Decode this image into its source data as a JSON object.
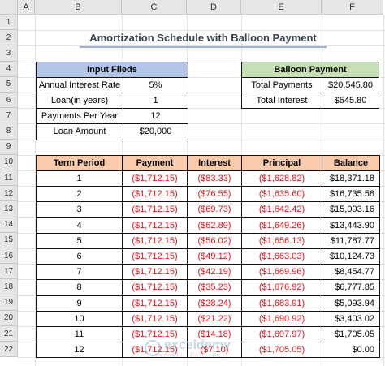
{
  "sheet": {
    "columns": [
      "A",
      "B",
      "C",
      "D",
      "E",
      "F"
    ],
    "rows": [
      "1",
      "2",
      "3",
      "4",
      "5",
      "6",
      "7",
      "8",
      "9",
      "10",
      "11",
      "12",
      "13",
      "14",
      "15",
      "16",
      "17",
      "18",
      "19",
      "20",
      "21",
      "22"
    ]
  },
  "title": "Amortization Schedule with Balloon Payment",
  "input": {
    "header": "Input Fileds",
    "rows": [
      {
        "label": "Annual Interest Rate",
        "value": "5%"
      },
      {
        "label": "Loan(in years)",
        "value": "1"
      },
      {
        "label": "Payments Per Year",
        "value": "12"
      },
      {
        "label": "Loan Amount",
        "value": "$20,000"
      }
    ]
  },
  "balloon": {
    "header": "Balloon Payment",
    "rows": [
      {
        "label": "Total Payments",
        "value": "$20,545.80"
      },
      {
        "label": "Total Interest",
        "value": "$545.80"
      }
    ]
  },
  "schedule": {
    "headers": [
      "Term Period",
      "Payment",
      "Interest",
      "Principal",
      "Balance"
    ],
    "rows": [
      [
        "1",
        "($1,712.15)",
        "($83.33)",
        "($1,628.82)",
        "$18,371.18"
      ],
      [
        "2",
        "($1,712.15)",
        "($76.55)",
        "($1,635.60)",
        "$16,735.58"
      ],
      [
        "3",
        "($1,712.15)",
        "($69.73)",
        "($1,642.42)",
        "$15,093.16"
      ],
      [
        "4",
        "($1,712.15)",
        "($62.89)",
        "($1,649.26)",
        "$13,443.90"
      ],
      [
        "5",
        "($1,712.15)",
        "($56.02)",
        "($1,656.13)",
        "$11,787.77"
      ],
      [
        "6",
        "($1,712.15)",
        "($49.12)",
        "($1,663.03)",
        "$10,124.73"
      ],
      [
        "7",
        "($1,712.15)",
        "($42.19)",
        "($1,669.96)",
        "$8,454.77"
      ],
      [
        "8",
        "($1,712.15)",
        "($35.23)",
        "($1,676.92)",
        "$6,777.85"
      ],
      [
        "9",
        "($1,712.15)",
        "($28.24)",
        "($1,683.91)",
        "$5,093.94"
      ],
      [
        "10",
        "($1,712.15)",
        "($21.22)",
        "($1,690.92)",
        "$3,403.02"
      ],
      [
        "11",
        "($1,712.15)",
        "($14.18)",
        "($1,697.97)",
        "$1,705.05"
      ],
      [
        "12",
        "($1,712.15)",
        "($7.10)",
        "($1,705.05)",
        "$0.00"
      ]
    ]
  },
  "watermark": {
    "name": "exceldemy",
    "sub": "EXCEL · DATA · BI"
  },
  "colors": {
    "input_header": "#b4c6e7",
    "balloon_header": "#c6e0b4",
    "schedule_header": "#f8cbad",
    "negative": "#e3141a"
  }
}
